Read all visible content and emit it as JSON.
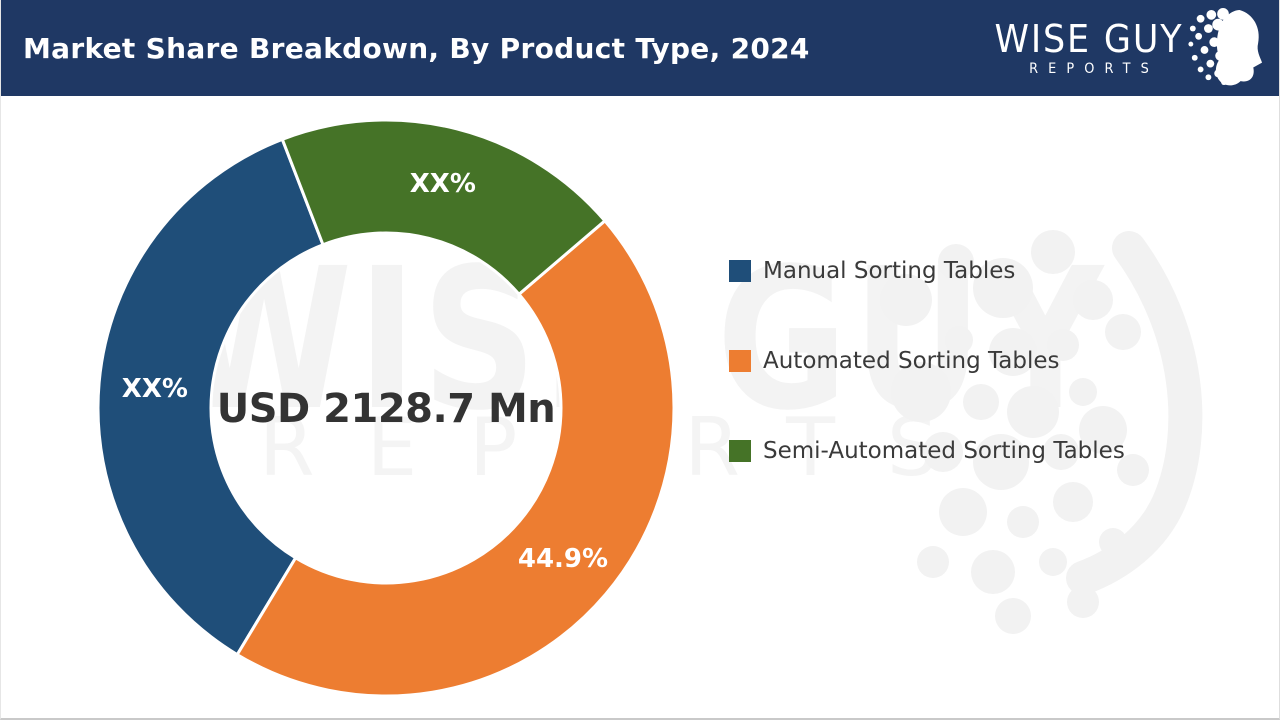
{
  "header": {
    "title": "Market Share Breakdown, By Product Type, 2024",
    "logo": {
      "wordmark": "WISE GUY",
      "subtext": "REPORTS",
      "head_icon": "dotted-head-profile-icon"
    }
  },
  "watermark": {
    "line1": "WISE GUY",
    "line2": "REPORTS"
  },
  "colors": {
    "header_bg": "#1F3864",
    "center_text": "#333333",
    "legend_text": "#3A3A3A",
    "slice_separator": "#FFFFFF"
  },
  "chart_data": {
    "type": "pie",
    "subtype": "donut",
    "title": "Market Share Breakdown, By Product Type, 2024",
    "center_label": "USD 2128.7 Mn",
    "legend_position": "right",
    "start_angle_deg": 111.1,
    "direction": "ccw",
    "series": [
      {
        "name": "Manual Sorting Tables",
        "value": 35.5,
        "display_label": "XX%",
        "color": "#1F4E79"
      },
      {
        "name": "Automated Sorting Tables",
        "value": 44.9,
        "display_label": "44.9%",
        "color": "#ED7D31"
      },
      {
        "name": "Semi-Automated Sorting Tables",
        "value": 19.6,
        "display_label": "XX%",
        "color": "#457327"
      }
    ]
  }
}
